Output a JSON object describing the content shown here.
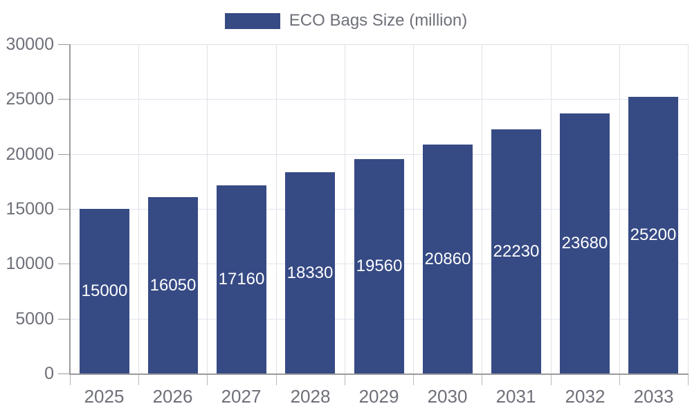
{
  "legend": {
    "position": "top-center",
    "items": [
      {
        "label": "ECO Bags Size (million)",
        "swatch_color": "#364a84"
      }
    ]
  },
  "chart_data": {
    "type": "bar",
    "title": "",
    "categories": [
      "2025",
      "2026",
      "2027",
      "2028",
      "2029",
      "2030",
      "2031",
      "2032",
      "2033"
    ],
    "series": [
      {
        "name": "ECO Bags Size (million)",
        "values": [
          15000,
          16050,
          17160,
          18330,
          19560,
          20860,
          22230,
          23680,
          25200
        ],
        "color": "#364a84"
      }
    ],
    "xlabel": "",
    "ylabel": "",
    "ylim": [
      0,
      30000
    ],
    "yticks": [
      0,
      5000,
      10000,
      15000,
      20000,
      25000,
      30000
    ],
    "grid": "on",
    "gridlines": "horizontal-and-vertical",
    "legend_position": "top-center",
    "value_labels": "inside-middle",
    "value_label_color": "#ffffff"
  },
  "colors": {
    "background": "#ffffff",
    "bar": "#364a84",
    "axis_line": "#9a9a9e",
    "grid_line_horizontal": "#dfe3ee",
    "grid_line_vertical": "#e2e2e4",
    "axis_text": "#6e7079",
    "legend_text": "#6e7079"
  }
}
